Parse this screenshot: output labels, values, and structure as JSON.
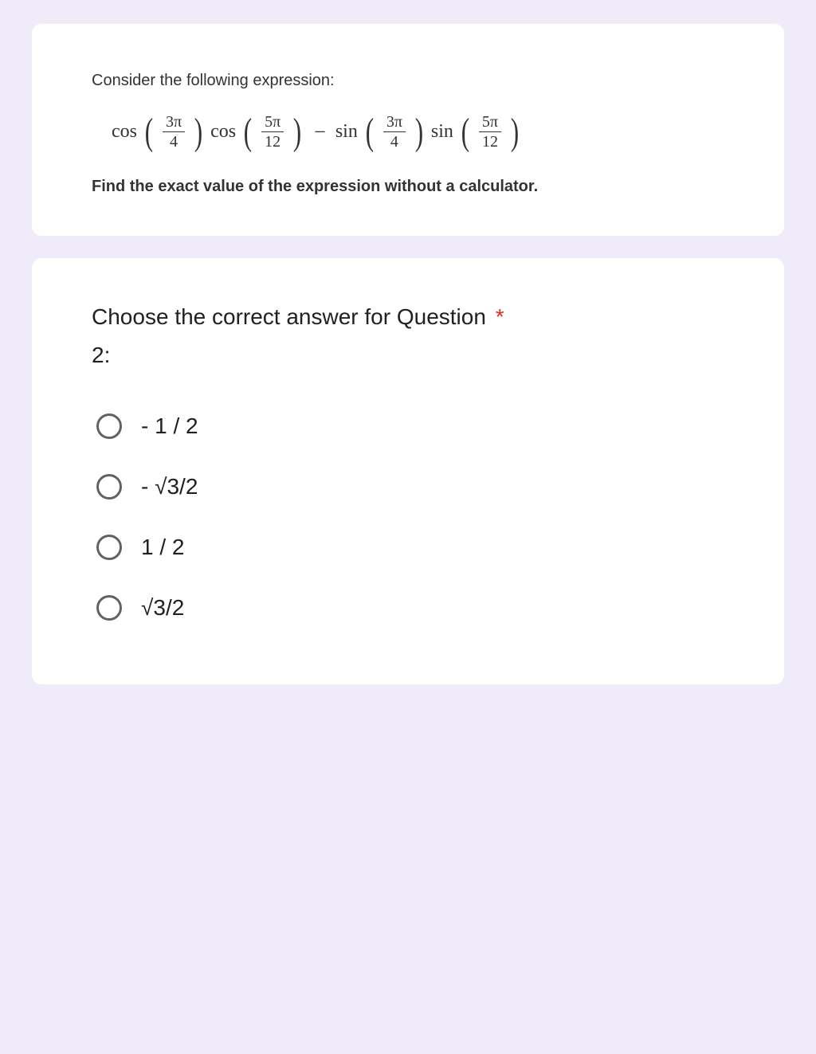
{
  "page": {
    "background_color": "#f0ebf8",
    "card_background": "#ffffff",
    "card_border_radius": 12
  },
  "question_card": {
    "intro": "Consider the following expression:",
    "expression": {
      "terms": [
        {
          "func": "cos",
          "frac_num": "3π",
          "frac_den": "4"
        },
        {
          "func": "cos",
          "frac_num": "5π",
          "frac_den": "12"
        },
        {
          "op": "−"
        },
        {
          "func": "sin",
          "frac_num": "3π",
          "frac_den": "4"
        },
        {
          "func": "sin",
          "frac_num": "5π",
          "frac_den": "12"
        }
      ]
    },
    "instruction": "Find the exact value of the expression without a calculator."
  },
  "answer_card": {
    "prompt_line1": "Choose the correct answer for Question",
    "prompt_line2": "2:",
    "required_marker": "*",
    "options": [
      {
        "label": "- 1 / 2"
      },
      {
        "label": "- √3/2"
      },
      {
        "label": "1 / 2"
      },
      {
        "label": "√3/2"
      }
    ]
  },
  "colors": {
    "text_primary": "#202124",
    "text_secondary": "#333333",
    "required": "#d93025",
    "radio_border": "#5f6368"
  }
}
